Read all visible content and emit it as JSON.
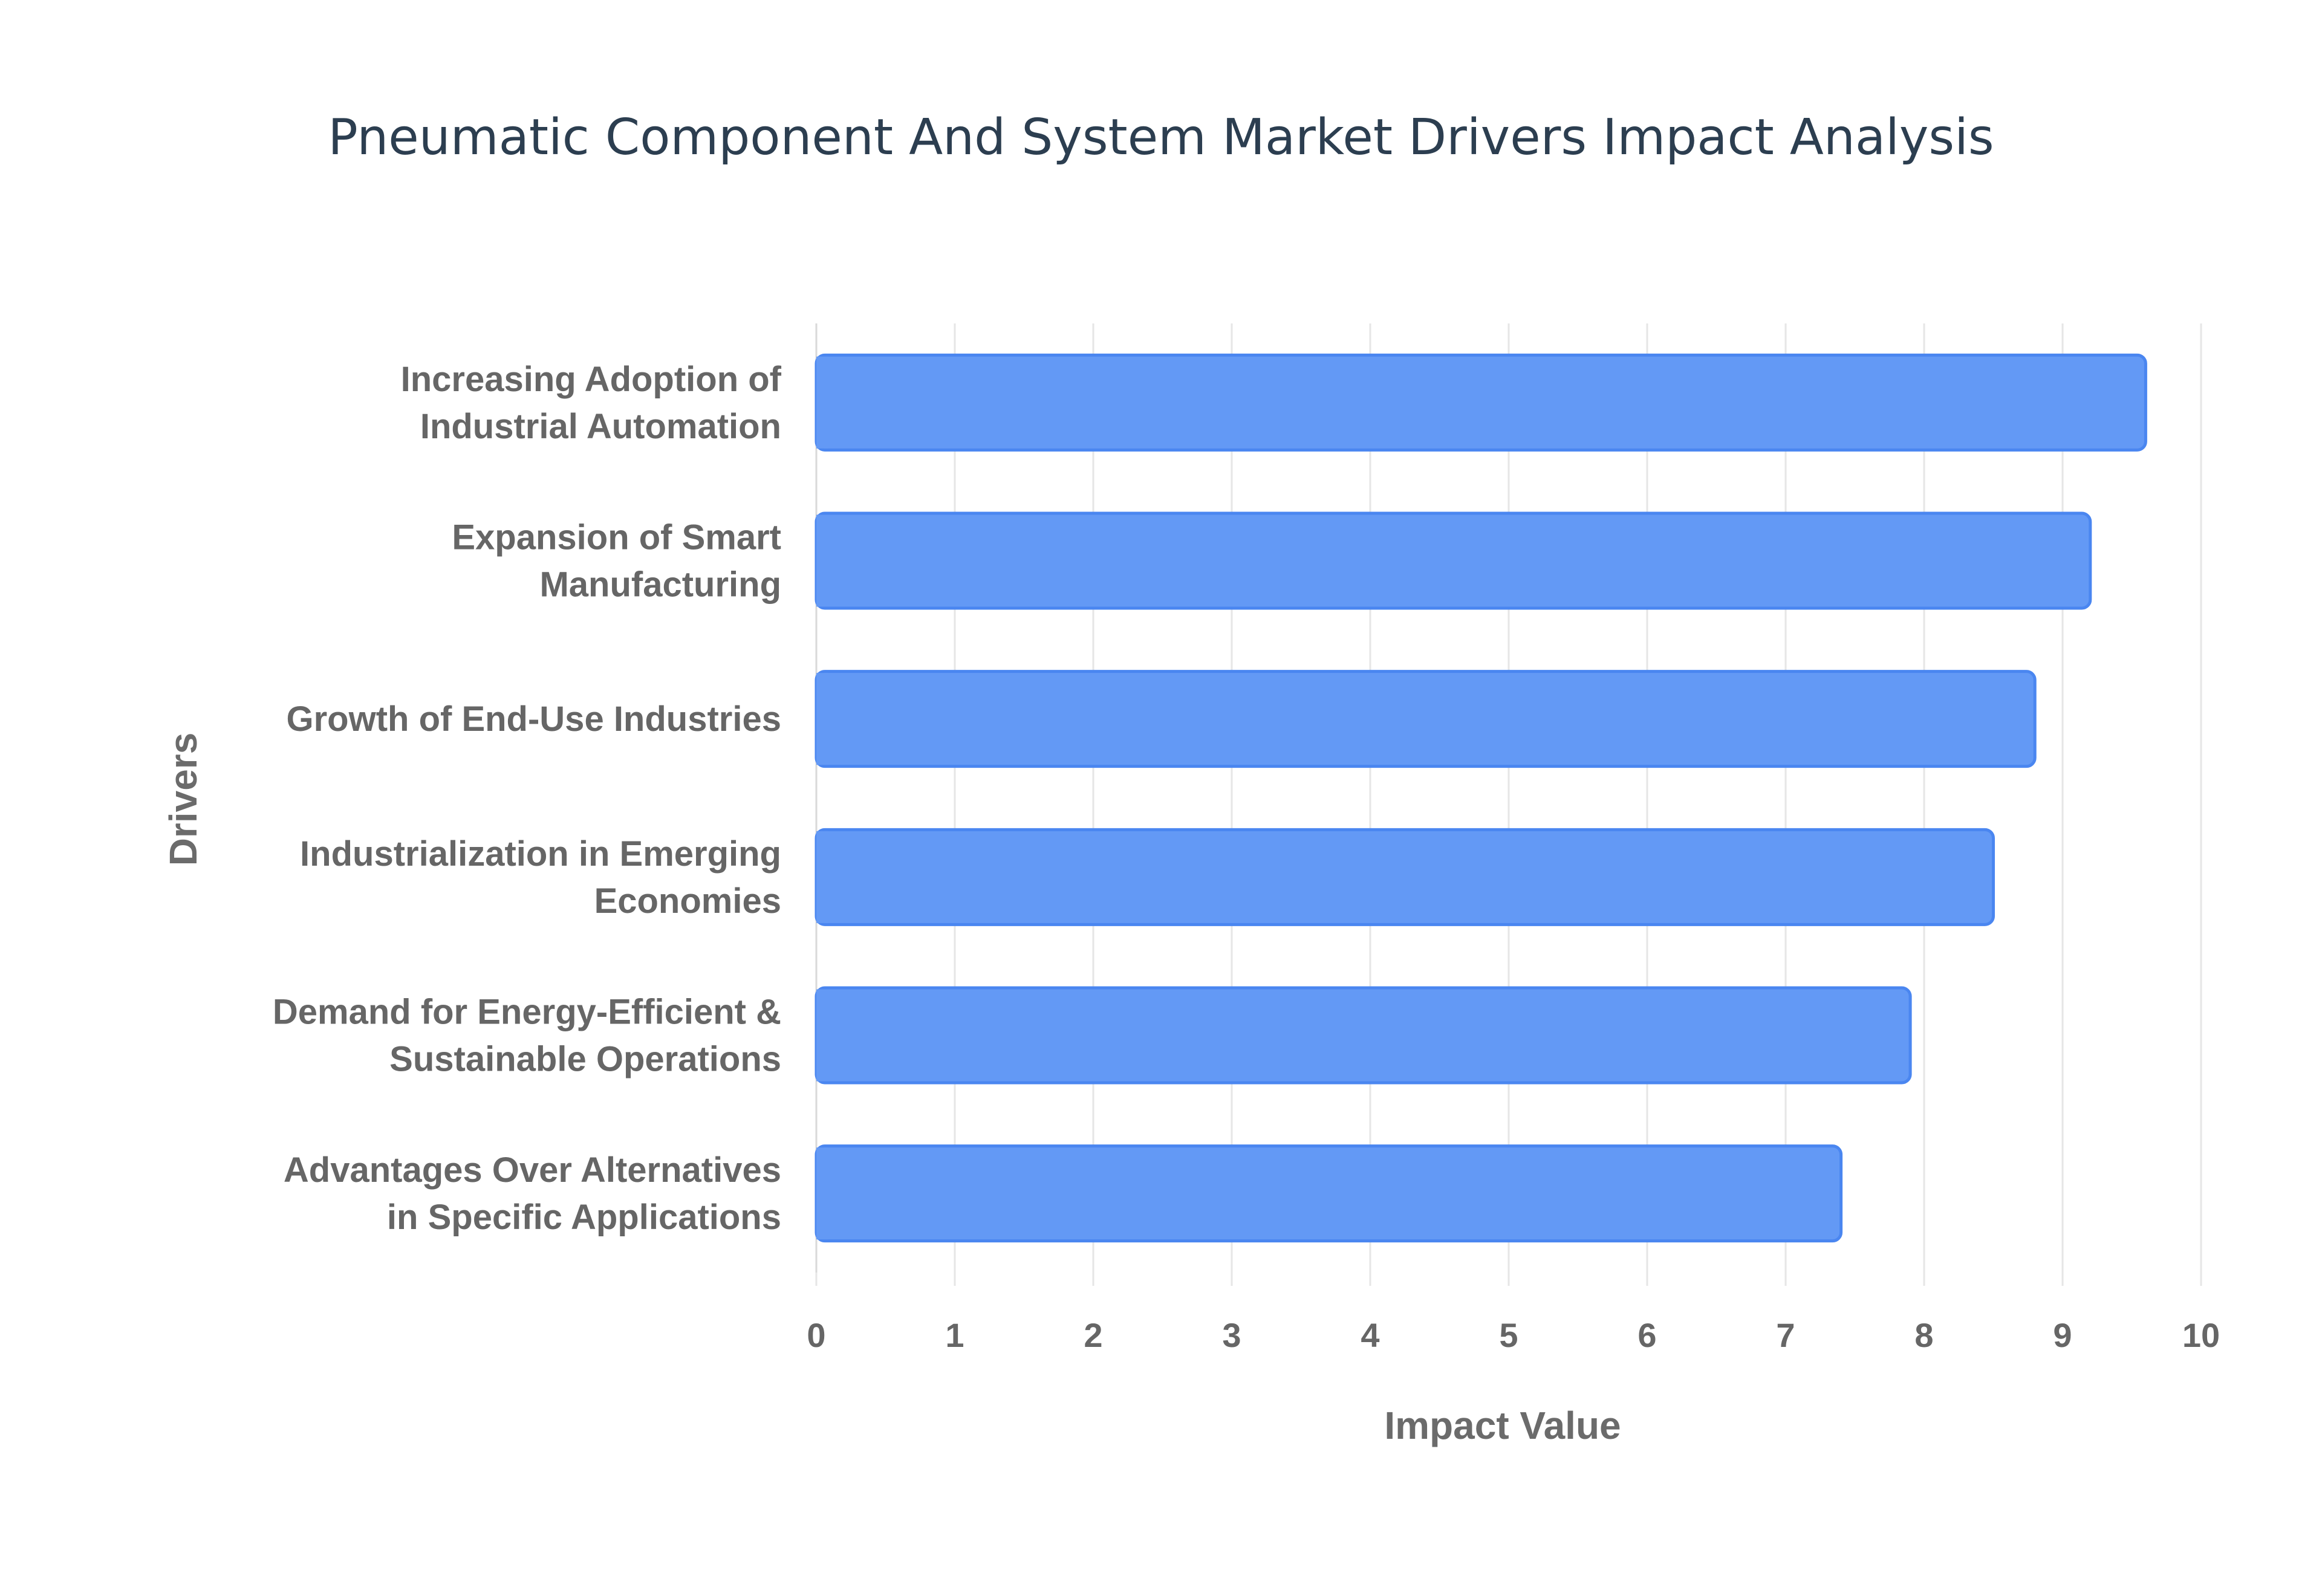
{
  "chart_data": {
    "type": "bar",
    "orientation": "horizontal",
    "title": "Pneumatic Component And System Market Drivers Impact Analysis",
    "xlabel": "Impact Value",
    "ylabel": "Drivers",
    "xlim": [
      0,
      10
    ],
    "x_ticks": [
      "0",
      "1",
      "2",
      "3",
      "4",
      "5",
      "6",
      "7",
      "8",
      "9",
      "10"
    ],
    "grid": true,
    "categories": [
      [
        "Increasing Adoption of",
        "Industrial Automation"
      ],
      [
        "Expansion of Smart",
        "Manufacturing"
      ],
      [
        "Growth of End-Use Industries"
      ],
      [
        "Industrialization in Emerging",
        "Economies"
      ],
      [
        "Demand for Energy-Efficient &",
        "Sustainable Operations"
      ],
      [
        "Advantages Over Alternatives",
        "in Specific Applications"
      ]
    ],
    "values": [
      9.6,
      9.2,
      8.8,
      8.5,
      7.9,
      7.4
    ],
    "colors": {
      "bar_fill": "#6399f5",
      "bar_stroke": "#4a86f0"
    }
  }
}
